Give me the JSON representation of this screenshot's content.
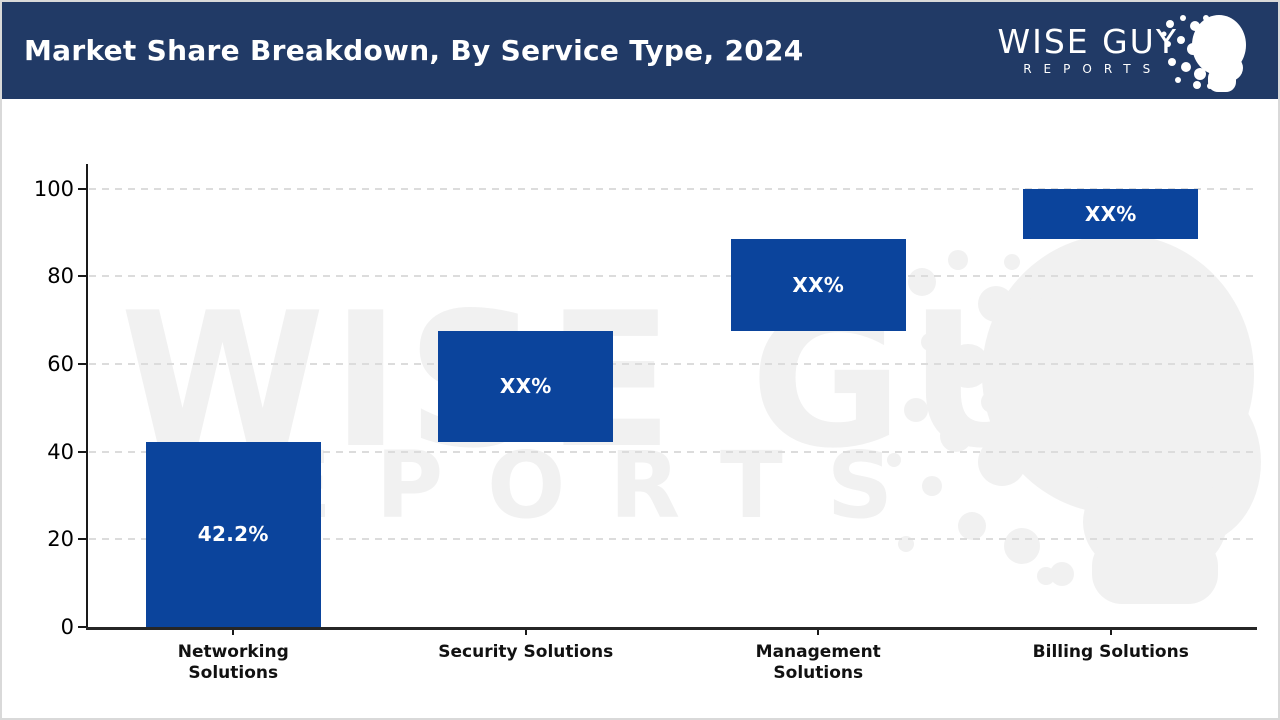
{
  "header": {
    "title": "Market Share Breakdown, By Service Type, 2024",
    "bg_color": "#213a66",
    "logo": {
      "line1": "WISE GUY",
      "line2": "REPORTS"
    }
  },
  "watermark": {
    "line1": "WISE GUY",
    "line2": "REPORTS"
  },
  "chart_data": {
    "type": "bar",
    "subtype": "waterfall",
    "title": "Market Share Breakdown, By Service Type, 2024",
    "xlabel": "",
    "ylabel": "",
    "categories": [
      "Networking\nSolutions",
      "Security Solutions",
      "Management\nSolutions",
      "Billing Solutions"
    ],
    "segments": [
      [
        0,
        42.2
      ],
      [
        42.2,
        67.5
      ],
      [
        67.5,
        88.4
      ],
      [
        88.4,
        100
      ]
    ],
    "bar_labels": [
      "42.2%",
      "XX%",
      "XX%",
      "XX%"
    ],
    "bar_color": "#0b449c",
    "ylim": [
      0,
      100
    ],
    "yticks": [
      0,
      20,
      40,
      60,
      80,
      100
    ],
    "grid": "horizontal dashed",
    "legend": "none"
  }
}
